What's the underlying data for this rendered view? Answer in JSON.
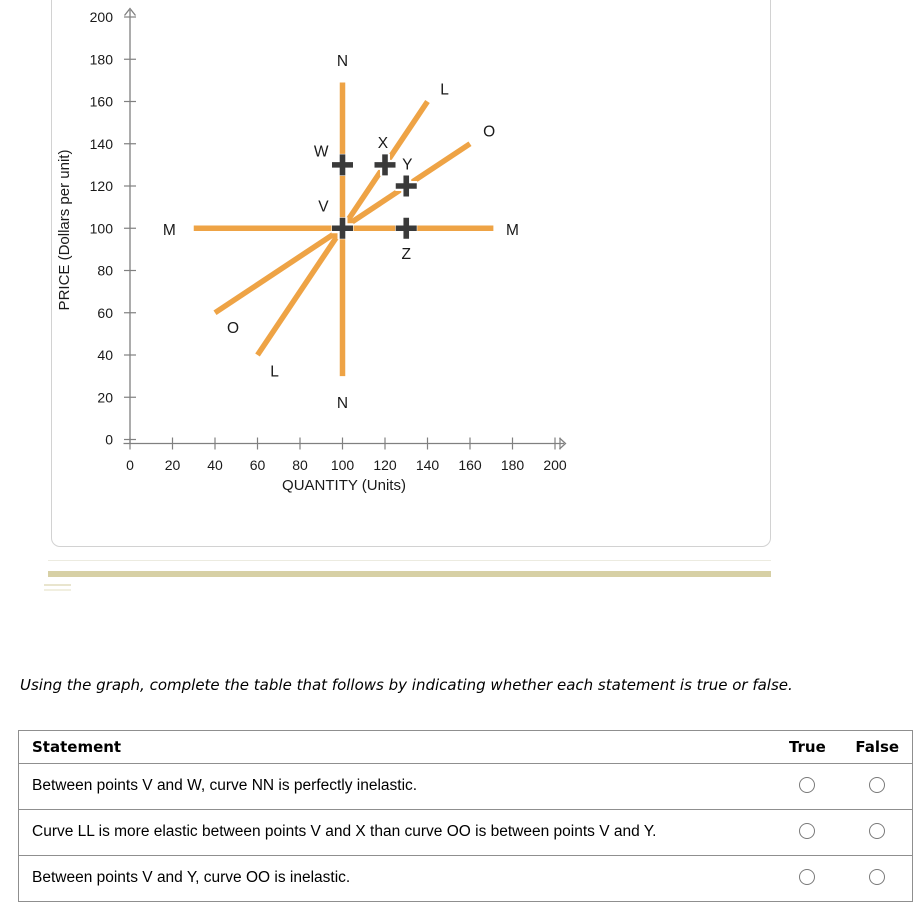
{
  "chart_panel": {
    "chart_data": {
      "type": "line",
      "title": "",
      "xlabel": "QUANTITY (Units)",
      "ylabel": "PRICE (Dollars per unit)",
      "xlim": [
        0,
        200
      ],
      "ylim": [
        0,
        200
      ],
      "xticks": [
        0,
        20,
        40,
        60,
        80,
        100,
        120,
        140,
        160,
        180,
        200
      ],
      "yticks": [
        0,
        20,
        40,
        60,
        80,
        100,
        120,
        140,
        160,
        180,
        200
      ],
      "grid": false,
      "legend": "none",
      "series": [
        {
          "name": "MM",
          "label": "M",
          "points": [
            [
              30,
              100
            ],
            [
              171,
              100
            ]
          ],
          "label_positions": [
            {
              "q": 18.5,
              "p": 99.5
            },
            {
              "q": 180,
              "p": 99.5
            }
          ]
        },
        {
          "name": "NN",
          "label": "N",
          "points": [
            [
              100,
              30
            ],
            [
              100,
              169
            ]
          ],
          "label_positions": [
            {
              "q": 100,
              "p": 179.5
            },
            {
              "q": 100,
              "p": 17.5
            }
          ]
        },
        {
          "name": "LL",
          "label": "L",
          "points": [
            [
              60,
              40
            ],
            [
              140,
              160
            ]
          ],
          "label_positions": [
            {
              "q": 148,
              "p": 166
            },
            {
              "q": 68,
              "p": 32.5
            }
          ]
        },
        {
          "name": "OO",
          "label": "O",
          "points": [
            [
              40,
              60
            ],
            [
              160,
              140
            ]
          ],
          "label_positions": [
            {
              "q": 169,
              "p": 146
            },
            {
              "q": 48.5,
              "p": 53
            }
          ]
        }
      ],
      "points": [
        {
          "label": "V",
          "q": 100,
          "p": 100,
          "label_q": 91,
          "label_p": 110.5
        },
        {
          "label": "W",
          "q": 100,
          "p": 130,
          "label_q": 90,
          "label_p": 136.5
        },
        {
          "label": "X",
          "q": 120,
          "p": 130,
          "label_q": 119,
          "label_p": 140.5
        },
        {
          "label": "Y",
          "q": 130,
          "p": 120,
          "label_q": 130.5,
          "label_p": 130.5
        },
        {
          "label": "Z",
          "q": 130,
          "p": 100,
          "label_q": 130,
          "label_p": 88
        }
      ],
      "colors": {
        "curve": "#EEA345",
        "marker": "#3A3A3A",
        "marker_halo": "#FFFFFF",
        "axis": "#808080",
        "text": "#1A1A1A"
      }
    }
  },
  "divider": {
    "accent_color": "#D7D0A5"
  },
  "instruction": "Using the graph, complete the table that follows by indicating whether each statement is true or false.",
  "table": {
    "headers": {
      "statement": "Statement",
      "true": "True",
      "false": "False"
    },
    "rows": [
      {
        "statement": "Between points V and W, curve NN is perfectly inelastic.",
        "true_selected": false,
        "false_selected": false
      },
      {
        "statement": "Curve LL is more elastic between points V and X than curve OO is between points V and Y.",
        "true_selected": false,
        "false_selected": false
      },
      {
        "statement": "Between points V and Y, curve OO is inelastic.",
        "true_selected": false,
        "false_selected": false
      }
    ]
  }
}
